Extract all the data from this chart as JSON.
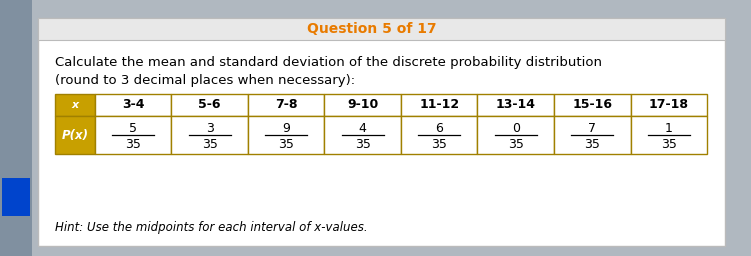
{
  "title": "Question 5 of 17",
  "title_color": "#E87B00",
  "body_text_line1": "Calculate the mean and standard deviation of the discrete probability distribution",
  "body_text_line2": "(round to 3 decimal places when necessary):",
  "hint_text": "Hint: Use the midpoints for each interval of x-values.",
  "col_headers": [
    "x",
    "3-4",
    "5-6",
    "7-8",
    "9-10",
    "11-12",
    "13-14",
    "15-16",
    "17-18"
  ],
  "row_label": "P(x)",
  "numerators": [
    "5",
    "3",
    "9",
    "4",
    "6",
    "0",
    "7",
    "1"
  ],
  "denominator": "35",
  "header_bg": "#C8A000",
  "label_bg": "#C8A000",
  "table_border_color": "#A08000",
  "card_bg": "#EFEFEF",
  "outer_bg": "#B0B8C0",
  "left_strip_bg": "#8090A0",
  "card_border": "#AAAAAA"
}
